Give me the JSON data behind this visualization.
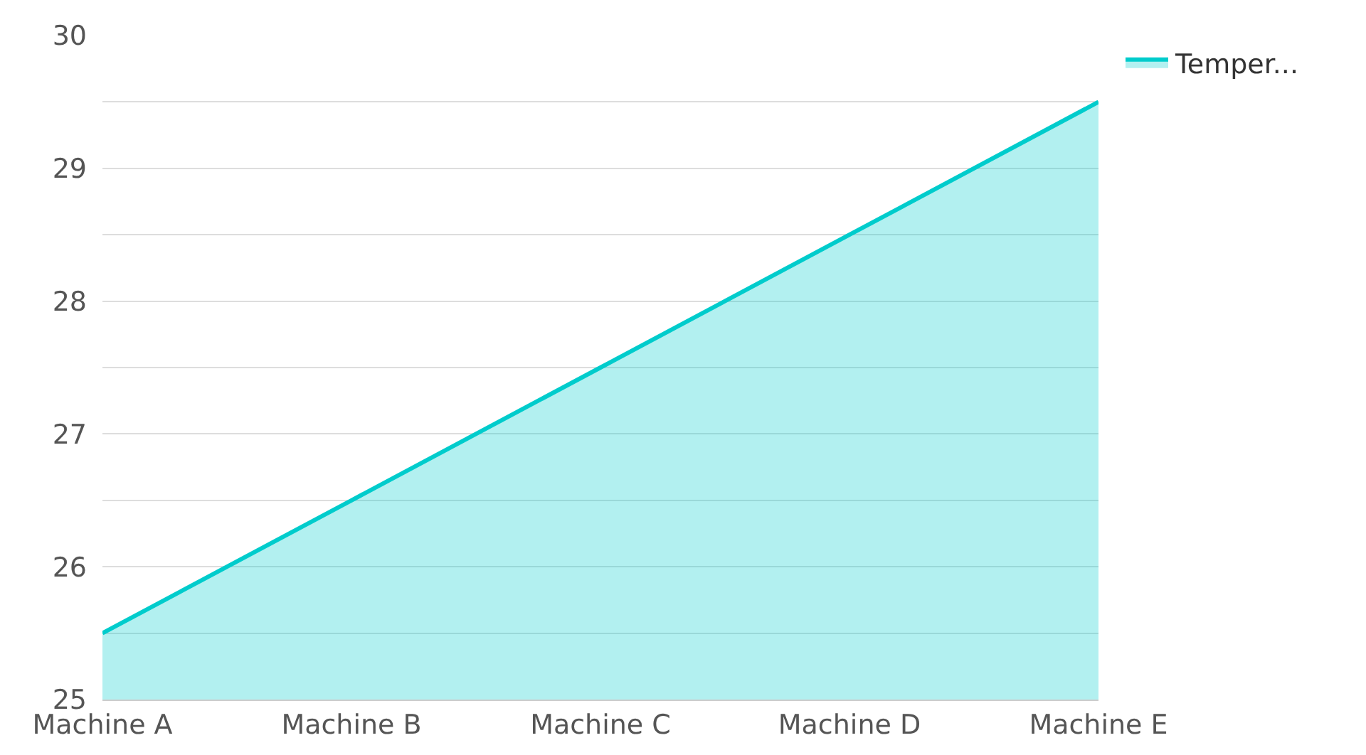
{
  "chart_data": {
    "type": "area",
    "categories": [
      "Machine A",
      "Machine B",
      "Machine C",
      "Machine D",
      "Machine E"
    ],
    "series": [
      {
        "name": "Temper...",
        "color": "#00cccc",
        "values": [
          25.5,
          26.5,
          27.5,
          28.5,
          29.5
        ]
      }
    ],
    "ylim": [
      25,
      30
    ],
    "yticks": [
      25,
      {
        "value": 25.5,
        "label": null
      },
      26,
      {
        "value": 26.5,
        "label": null
      },
      27,
      {
        "value": 27.5,
        "label": null
      },
      28,
      {
        "value": 28.5,
        "label": null
      },
      29,
      {
        "value": 29.5,
        "label": null
      },
      30
    ],
    "grid": "y",
    "legend": "top right"
  }
}
